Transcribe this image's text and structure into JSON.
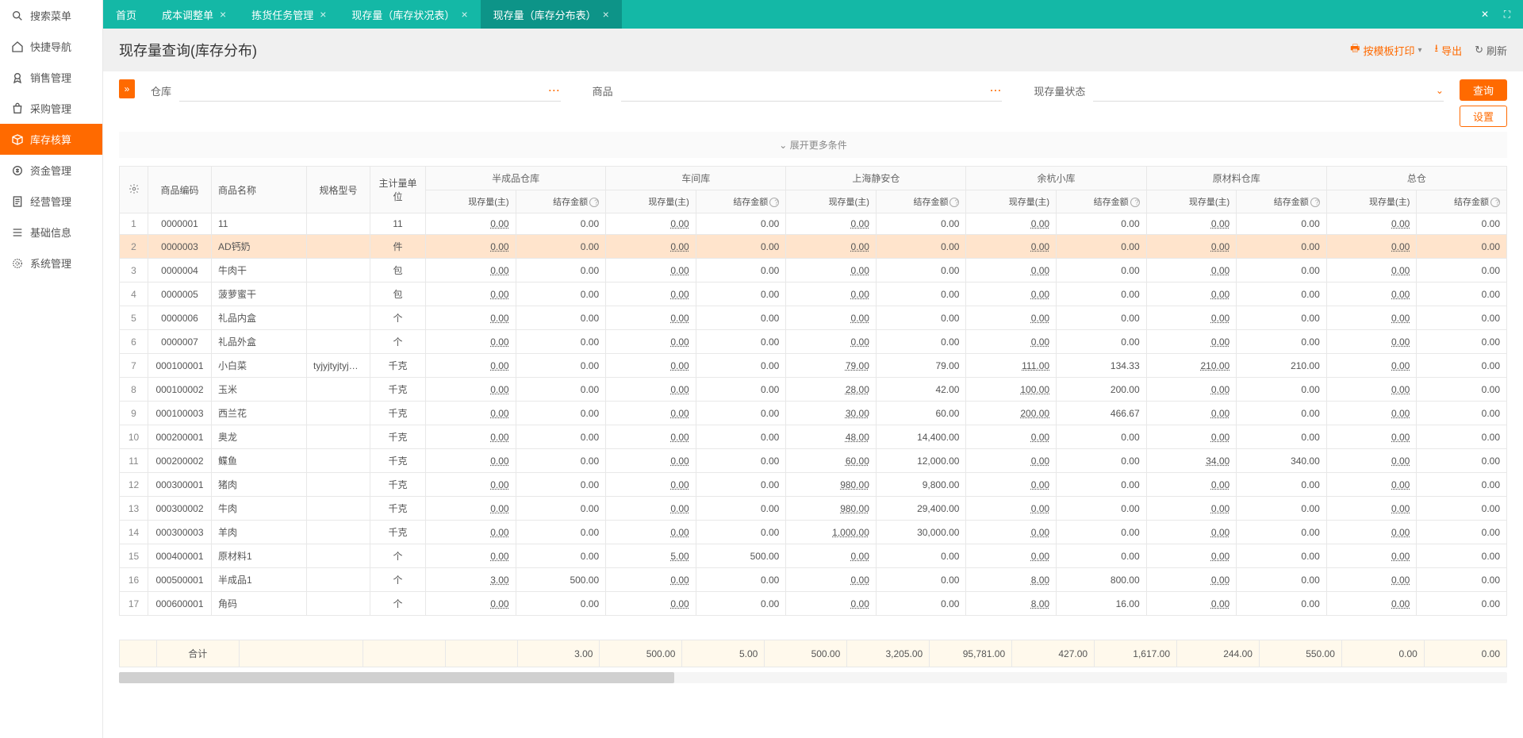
{
  "sidebar": {
    "items": [
      {
        "label": "搜索菜单",
        "icon": "search"
      },
      {
        "label": "快捷导航",
        "icon": "home"
      },
      {
        "label": "销售管理",
        "icon": "badge"
      },
      {
        "label": "采购管理",
        "icon": "bag"
      },
      {
        "label": "库存核算",
        "icon": "box",
        "active": true
      },
      {
        "label": "资金管理",
        "icon": "coin"
      },
      {
        "label": "经营管理",
        "icon": "doc"
      },
      {
        "label": "基础信息",
        "icon": "stack"
      },
      {
        "label": "系统管理",
        "icon": "gear-dash"
      }
    ]
  },
  "tabs": {
    "items": [
      {
        "label": "首页",
        "closable": false
      },
      {
        "label": "成本调整单",
        "closable": true
      },
      {
        "label": "拣货任务管理",
        "closable": true
      },
      {
        "label": "现存量（库存状况表）",
        "closable": true
      },
      {
        "label": "现存量（库存分布表）",
        "closable": true,
        "active": true
      }
    ]
  },
  "title": "现存量查询(库存分布)",
  "toolbar": {
    "print": "按模板打印",
    "export": "导出",
    "refresh": "刷新"
  },
  "filters": {
    "warehouse_label": "仓库",
    "goods_label": "商品",
    "status_label": "现存量状态",
    "query_btn": "查询",
    "settings_btn": "设置",
    "expand_more": "展开更多条件"
  },
  "table": {
    "headers": {
      "code": "商品编码",
      "name": "商品名称",
      "spec": "规格型号",
      "unit": "主计量单位",
      "warehouses": [
        "半成品仓库",
        "车间库",
        "上海静安仓",
        "余杭小库",
        "原材料仓库",
        "总仓"
      ],
      "qty": "现存量(主)",
      "amt": "结存金额"
    },
    "rows": [
      {
        "idx": 1,
        "code": "0000001",
        "name": "11",
        "spec": "",
        "unit": "11",
        "vals": [
          "0.00",
          "0.00",
          "0.00",
          "0.00",
          "0.00",
          "0.00",
          "0.00",
          "0.00",
          "0.00",
          "0.00",
          "0.00",
          "0.00"
        ]
      },
      {
        "idx": 2,
        "code": "0000003",
        "name": "AD钙奶",
        "spec": "",
        "unit": "件",
        "highlight": true,
        "vals": [
          "0.00",
          "0.00",
          "0.00",
          "0.00",
          "0.00",
          "0.00",
          "0.00",
          "0.00",
          "0.00",
          "0.00",
          "0.00",
          "0.00"
        ]
      },
      {
        "idx": 3,
        "code": "0000004",
        "name": "牛肉干",
        "spec": "",
        "unit": "包",
        "vals": [
          "0.00",
          "0.00",
          "0.00",
          "0.00",
          "0.00",
          "0.00",
          "0.00",
          "0.00",
          "0.00",
          "0.00",
          "0.00",
          "0.00"
        ]
      },
      {
        "idx": 4,
        "code": "0000005",
        "name": "菠萝蜜干",
        "spec": "",
        "unit": "包",
        "vals": [
          "0.00",
          "0.00",
          "0.00",
          "0.00",
          "0.00",
          "0.00",
          "0.00",
          "0.00",
          "0.00",
          "0.00",
          "0.00",
          "0.00"
        ]
      },
      {
        "idx": 5,
        "code": "0000006",
        "name": "礼品内盒",
        "spec": "",
        "unit": "个",
        "vals": [
          "0.00",
          "0.00",
          "0.00",
          "0.00",
          "0.00",
          "0.00",
          "0.00",
          "0.00",
          "0.00",
          "0.00",
          "0.00",
          "0.00"
        ]
      },
      {
        "idx": 6,
        "code": "0000007",
        "name": "礼品外盒",
        "spec": "",
        "unit": "个",
        "vals": [
          "0.00",
          "0.00",
          "0.00",
          "0.00",
          "0.00",
          "0.00",
          "0.00",
          "0.00",
          "0.00",
          "0.00",
          "0.00",
          "0.00"
        ]
      },
      {
        "idx": 7,
        "code": "000100001",
        "name": "小白菜",
        "spec": "tyjyjtyjtyjdf...",
        "unit": "千克",
        "vals": [
          "0.00",
          "0.00",
          "0.00",
          "0.00",
          "79.00",
          "79.00",
          "111.00",
          "134.33",
          "210.00",
          "210.00",
          "0.00",
          "0.00"
        ]
      },
      {
        "idx": 8,
        "code": "000100002",
        "name": "玉米",
        "spec": "",
        "unit": "千克",
        "vals": [
          "0.00",
          "0.00",
          "0.00",
          "0.00",
          "28.00",
          "42.00",
          "100.00",
          "200.00",
          "0.00",
          "0.00",
          "0.00",
          "0.00"
        ]
      },
      {
        "idx": 9,
        "code": "000100003",
        "name": "西兰花",
        "spec": "",
        "unit": "千克",
        "vals": [
          "0.00",
          "0.00",
          "0.00",
          "0.00",
          "30.00",
          "60.00",
          "200.00",
          "466.67",
          "0.00",
          "0.00",
          "0.00",
          "0.00"
        ]
      },
      {
        "idx": 10,
        "code": "000200001",
        "name": "奥龙",
        "spec": "",
        "unit": "千克",
        "vals": [
          "0.00",
          "0.00",
          "0.00",
          "0.00",
          "48.00",
          "14,400.00",
          "0.00",
          "0.00",
          "0.00",
          "0.00",
          "0.00",
          "0.00"
        ]
      },
      {
        "idx": 11,
        "code": "000200002",
        "name": "鲽鱼",
        "spec": "",
        "unit": "千克",
        "vals": [
          "0.00",
          "0.00",
          "0.00",
          "0.00",
          "60.00",
          "12,000.00",
          "0.00",
          "0.00",
          "34.00",
          "340.00",
          "0.00",
          "0.00"
        ]
      },
      {
        "idx": 12,
        "code": "000300001",
        "name": "猪肉",
        "spec": "",
        "unit": "千克",
        "vals": [
          "0.00",
          "0.00",
          "0.00",
          "0.00",
          "980.00",
          "9,800.00",
          "0.00",
          "0.00",
          "0.00",
          "0.00",
          "0.00",
          "0.00"
        ]
      },
      {
        "idx": 13,
        "code": "000300002",
        "name": "牛肉",
        "spec": "",
        "unit": "千克",
        "vals": [
          "0.00",
          "0.00",
          "0.00",
          "0.00",
          "980.00",
          "29,400.00",
          "0.00",
          "0.00",
          "0.00",
          "0.00",
          "0.00",
          "0.00"
        ]
      },
      {
        "idx": 14,
        "code": "000300003",
        "name": "羊肉",
        "spec": "",
        "unit": "千克",
        "vals": [
          "0.00",
          "0.00",
          "0.00",
          "0.00",
          "1,000.00",
          "30,000.00",
          "0.00",
          "0.00",
          "0.00",
          "0.00",
          "0.00",
          "0.00"
        ]
      },
      {
        "idx": 15,
        "code": "000400001",
        "name": "原材料1",
        "spec": "",
        "unit": "个",
        "vals": [
          "0.00",
          "0.00",
          "5.00",
          "500.00",
          "0.00",
          "0.00",
          "0.00",
          "0.00",
          "0.00",
          "0.00",
          "0.00",
          "0.00"
        ]
      },
      {
        "idx": 16,
        "code": "000500001",
        "name": "半成品1",
        "spec": "",
        "unit": "个",
        "vals": [
          "3.00",
          "500.00",
          "0.00",
          "0.00",
          "0.00",
          "0.00",
          "8.00",
          "800.00",
          "0.00",
          "0.00",
          "0.00",
          "0.00"
        ]
      },
      {
        "idx": 17,
        "code": "000600001",
        "name": "角码",
        "spec": "",
        "unit": "个",
        "vals": [
          "0.00",
          "0.00",
          "0.00",
          "0.00",
          "0.00",
          "0.00",
          "8.00",
          "16.00",
          "0.00",
          "0.00",
          "0.00",
          "0.00"
        ]
      }
    ],
    "total_label": "合计",
    "totals": [
      "3.00",
      "500.00",
      "5.00",
      "500.00",
      "3,205.00",
      "95,781.00",
      "427.00",
      "1,617.00",
      "244.00",
      "550.00",
      "0.00",
      "0.00"
    ]
  },
  "colors": {
    "accent": "#ff6a00",
    "teal": "#14b8a6",
    "highlight": "#ffe4cc",
    "total_bg": "#fff9ec"
  }
}
